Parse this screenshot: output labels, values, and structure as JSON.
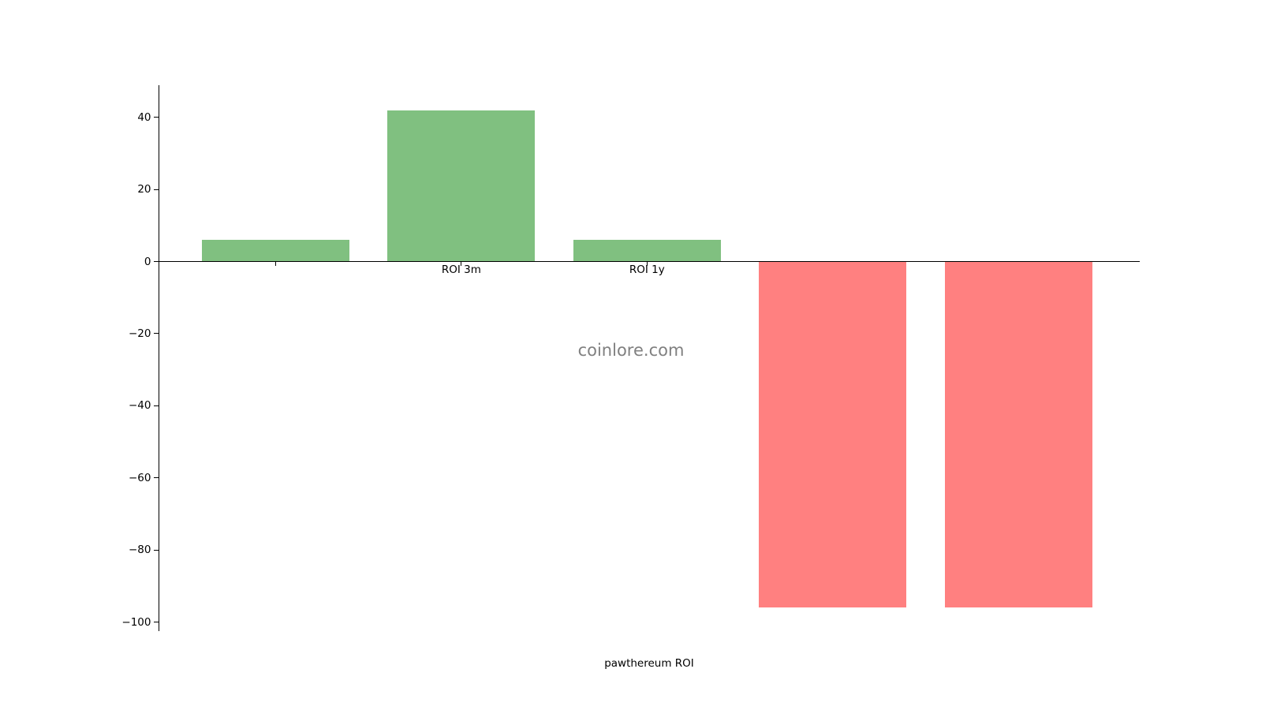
{
  "page": {
    "background_color": "#ffffff"
  },
  "chart_data": {
    "type": "bar",
    "title": "",
    "xlabel": "pawthereum ROI",
    "ylabel": "",
    "categories": [
      "",
      "ROI 3m",
      "ROI 1y",
      "",
      ""
    ],
    "values": [
      6,
      42,
      6,
      -96,
      -96
    ],
    "series_note": "single series; labels for bars 4 and 5 are hidden behind the negative bars; bar 1 has a tick mark but no label",
    "ytick_labels": [
      "40",
      "20",
      "0",
      "−20",
      "−40",
      "−60",
      "−80",
      "−100"
    ],
    "ytick_values": [
      40,
      20,
      0,
      -20,
      -40,
      -60,
      -80,
      -100
    ],
    "ylim": [
      -102,
      49
    ],
    "grid": false,
    "legend": "none",
    "positive_color": "#80c080",
    "negative_color": "#ff8080",
    "axis_color": "#000000",
    "watermark": "coinlore.com",
    "watermark_color": "#808080"
  }
}
